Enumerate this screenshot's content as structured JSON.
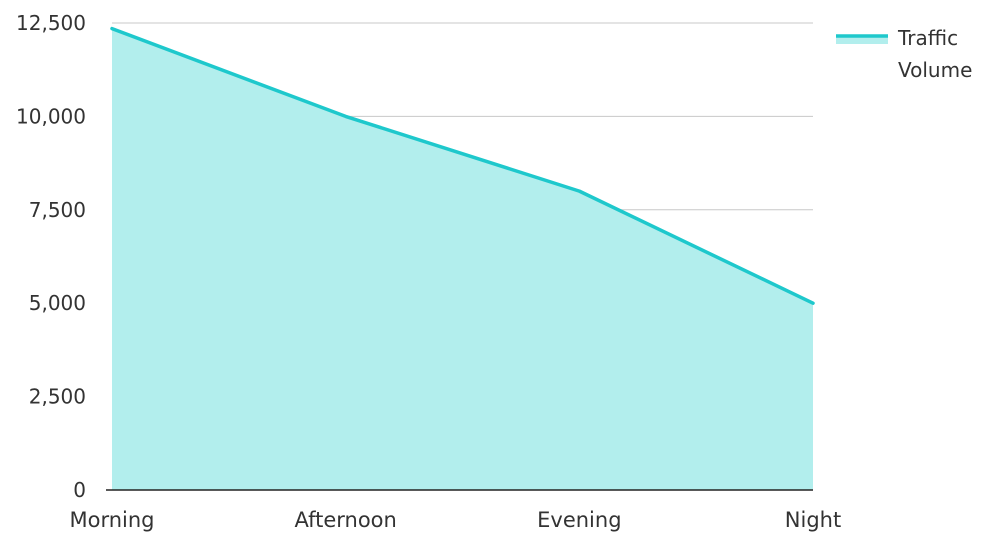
{
  "chart_data": {
    "type": "area",
    "title": "",
    "xlabel": "",
    "ylabel": "",
    "categories": [
      "Morning",
      "Afternoon",
      "Evening",
      "Night"
    ],
    "ylim": [
      0,
      12500
    ],
    "yticks": [
      0,
      2500,
      5000,
      7500,
      10000,
      12500
    ],
    "ytick_labels": [
      "0",
      "2,500",
      "5,000",
      "7,500",
      "10,000",
      "12,500"
    ],
    "series": [
      {
        "name": "Traffic Volume",
        "values": [
          12350,
          10000,
          8000,
          5000
        ],
        "line_color": "#1ec8cc",
        "fill_color": "#b2eeed"
      }
    ],
    "grid": true,
    "gridline_color": "#c8c8c8",
    "axis_line_color": "#222222",
    "legend": {
      "position": "top-right"
    }
  }
}
